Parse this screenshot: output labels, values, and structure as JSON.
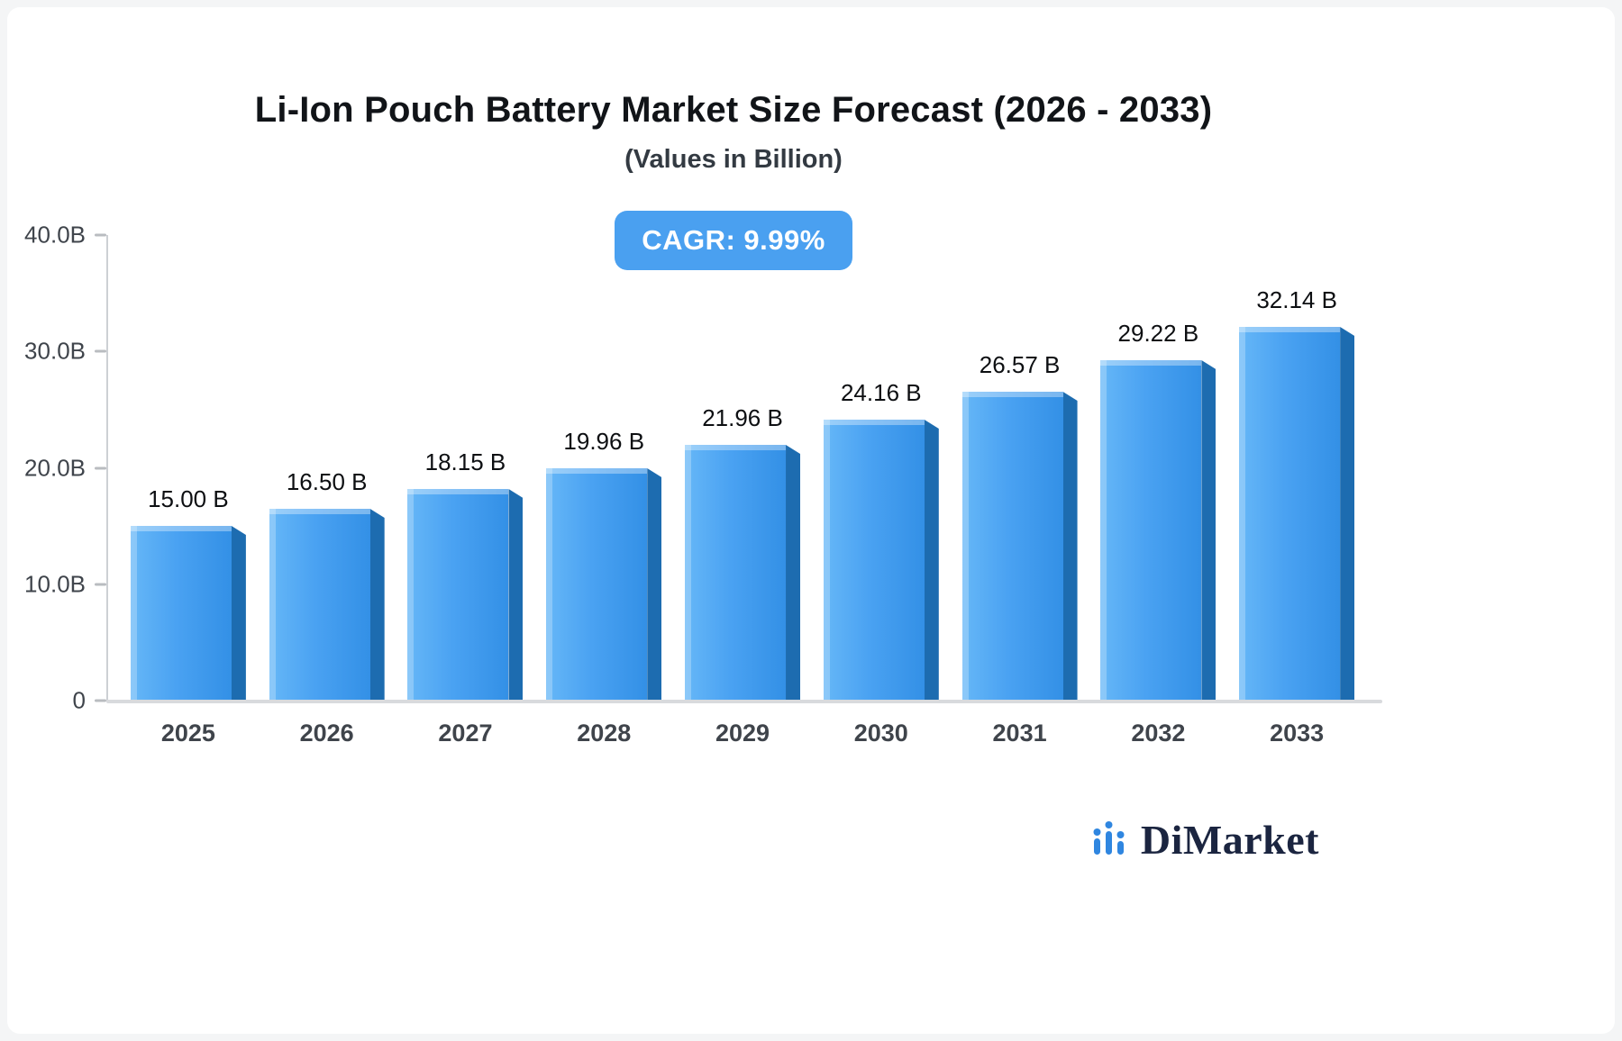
{
  "header": {
    "title": "Li-Ion Pouch Battery Market Size Forecast (2026 - 2033)",
    "subtitle": "(Values in Billion)",
    "cagr_label": "CAGR: 9.99%"
  },
  "chart_data": {
    "type": "bar",
    "title": "Li-Ion Pouch Battery Market Size Forecast (2026 - 2033)",
    "subtitle": "(Values in Billion)",
    "cagr_percent": 9.99,
    "categories": [
      "2025",
      "2026",
      "2027",
      "2028",
      "2029",
      "2030",
      "2031",
      "2032",
      "2033"
    ],
    "values": [
      15.0,
      16.5,
      18.15,
      19.96,
      21.96,
      24.16,
      26.57,
      29.22,
      32.14
    ],
    "value_labels": [
      "15.00 B",
      "16.50 B",
      "18.15 B",
      "19.96 B",
      "21.96 B",
      "24.16 B",
      "26.57 B",
      "29.22 B",
      "32.14 B"
    ],
    "unit": "Billion",
    "xlabel": "",
    "ylabel": "",
    "ylim": [
      0,
      40
    ],
    "yticks": [
      {
        "value": 0,
        "label": "0"
      },
      {
        "value": 10,
        "label": "10.0B"
      },
      {
        "value": 20,
        "label": "20.0B"
      },
      {
        "value": 30,
        "label": "30.0B"
      },
      {
        "value": 40,
        "label": "40.0B"
      }
    ],
    "grid": false,
    "legend": false,
    "bar_color_light": "#66b7f7",
    "bar_color_main": "#3390e6",
    "bar_side_color": "#1d6cb0",
    "badge_color": "#4aa0f0"
  },
  "branding": {
    "logo_text": "DiMarket",
    "logo_color": "#1b2540",
    "logo_icon_color": "#2f86e0"
  }
}
